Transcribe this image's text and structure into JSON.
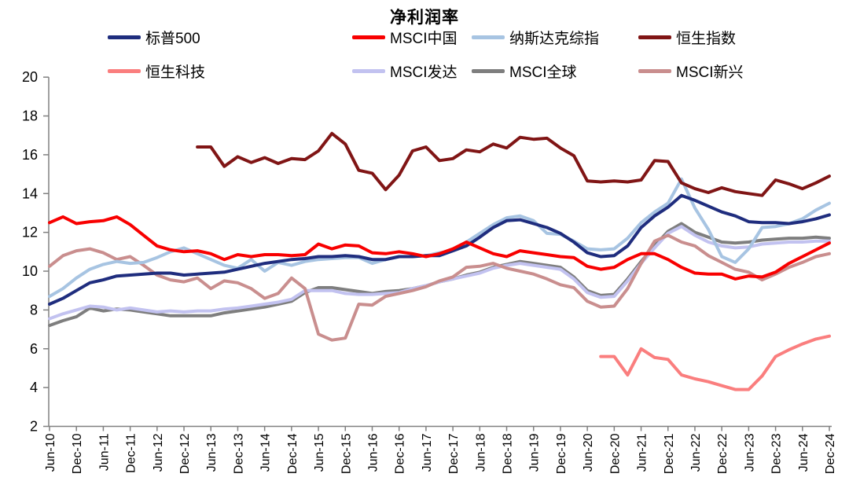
{
  "page_title": "净利润率",
  "chart_data": {
    "type": "line",
    "title": "净利润率",
    "grid": false,
    "legend_position": "top",
    "x_label_note": "semi-annual ticks shown, quarterly data",
    "x": [
      "Jun-10",
      "Sep-10",
      "Dec-10",
      "Mar-11",
      "Jun-11",
      "Sep-11",
      "Dec-11",
      "Mar-12",
      "Jun-12",
      "Sep-12",
      "Dec-12",
      "Mar-13",
      "Jun-13",
      "Sep-13",
      "Dec-13",
      "Mar-14",
      "Jun-14",
      "Sep-14",
      "Dec-14",
      "Mar-15",
      "Jun-15",
      "Sep-15",
      "Dec-15",
      "Mar-16",
      "Jun-16",
      "Sep-16",
      "Dec-16",
      "Mar-17",
      "Jun-17",
      "Sep-17",
      "Dec-17",
      "Mar-18",
      "Jun-18",
      "Sep-18",
      "Dec-18",
      "Mar-19",
      "Jun-19",
      "Sep-19",
      "Dec-19",
      "Mar-20",
      "Jun-20",
      "Sep-20",
      "Dec-20",
      "Mar-21",
      "Jun-21",
      "Sep-21",
      "Dec-21",
      "Mar-22",
      "Jun-22",
      "Sep-22",
      "Dec-22",
      "Mar-23",
      "Jun-23",
      "Sep-23",
      "Dec-23",
      "Mar-24",
      "Jun-24",
      "Sep-24",
      "Dec-24"
    ],
    "y_axis": {
      "min": 2,
      "max": 20,
      "step": 2,
      "ticks": [
        2,
        4,
        6,
        8,
        10,
        12,
        14,
        16,
        18,
        20
      ]
    },
    "series": [
      {
        "name": "标普500",
        "color": "#1F2D7E",
        "values": [
          8.3,
          8.6,
          9.0,
          9.4,
          9.55,
          9.75,
          9.8,
          9.85,
          9.9,
          9.9,
          9.8,
          9.85,
          9.9,
          9.95,
          10.1,
          10.25,
          10.4,
          10.5,
          10.6,
          10.65,
          10.75,
          10.75,
          10.8,
          10.75,
          10.6,
          10.6,
          10.75,
          10.75,
          10.8,
          10.8,
          11.05,
          11.3,
          11.75,
          12.25,
          12.6,
          12.65,
          12.45,
          12.25,
          11.95,
          11.5,
          10.95,
          10.75,
          10.8,
          11.3,
          12.25,
          12.85,
          13.3,
          13.9,
          13.65,
          13.35,
          13.05,
          12.85,
          12.55,
          12.5,
          12.5,
          12.45,
          12.55,
          12.7,
          12.9
        ]
      },
      {
        "name": "MSCI中国",
        "color": "#F80000",
        "values": [
          12.5,
          12.8,
          12.45,
          12.55,
          12.6,
          12.8,
          12.4,
          11.85,
          11.3,
          11.1,
          11.0,
          11.05,
          10.9,
          10.6,
          10.85,
          10.75,
          10.85,
          10.85,
          10.8,
          10.85,
          11.4,
          11.15,
          11.35,
          11.3,
          10.95,
          10.9,
          11.0,
          10.9,
          10.75,
          10.9,
          11.15,
          11.5,
          11.2,
          10.9,
          10.75,
          11.05,
          10.95,
          10.85,
          10.75,
          10.7,
          10.25,
          10.1,
          10.2,
          10.6,
          10.9,
          10.9,
          10.6,
          10.2,
          9.9,
          9.85,
          9.85,
          9.6,
          9.75,
          9.7,
          9.95,
          10.4,
          10.75,
          11.1,
          11.45
        ]
      },
      {
        "name": "纳斯达克综指",
        "color": "#A7C4E2",
        "values": [
          8.7,
          9.1,
          9.65,
          10.1,
          10.35,
          10.5,
          10.4,
          10.45,
          10.7,
          11.0,
          11.2,
          10.9,
          10.6,
          10.3,
          10.15,
          10.6,
          10.0,
          10.45,
          10.3,
          10.5,
          10.6,
          10.65,
          10.7,
          10.7,
          10.4,
          10.6,
          10.75,
          10.75,
          10.8,
          10.95,
          11.05,
          11.5,
          11.95,
          12.4,
          12.75,
          12.85,
          12.6,
          11.95,
          11.9,
          11.55,
          11.15,
          11.1,
          11.15,
          11.7,
          12.5,
          13.05,
          13.5,
          14.75,
          13.25,
          12.15,
          10.75,
          10.45,
          11.15,
          12.25,
          12.3,
          12.45,
          12.7,
          13.15,
          13.5
        ]
      },
      {
        "name": "恒生指数",
        "color": "#801515",
        "values": [
          null,
          null,
          null,
          null,
          null,
          null,
          null,
          null,
          null,
          null,
          null,
          16.4,
          16.4,
          15.4,
          15.9,
          15.6,
          15.85,
          15.55,
          15.8,
          15.75,
          16.2,
          17.1,
          16.55,
          15.2,
          15.05,
          14.2,
          14.95,
          16.2,
          16.4,
          15.7,
          15.8,
          16.25,
          16.15,
          16.55,
          16.35,
          16.9,
          16.8,
          16.85,
          16.35,
          15.95,
          14.65,
          14.6,
          14.65,
          14.6,
          14.7,
          15.7,
          15.65,
          14.55,
          14.25,
          14.05,
          14.3,
          14.1,
          14.0,
          13.9,
          14.7,
          14.5,
          14.25,
          14.55,
          14.9
        ]
      },
      {
        "name": "恒生科技",
        "color": "#FA7E7E",
        "values": [
          null,
          null,
          null,
          null,
          null,
          null,
          null,
          null,
          null,
          null,
          null,
          null,
          null,
          null,
          null,
          null,
          null,
          null,
          null,
          null,
          null,
          null,
          null,
          null,
          null,
          null,
          null,
          null,
          null,
          null,
          null,
          null,
          null,
          null,
          null,
          null,
          null,
          null,
          null,
          null,
          null,
          5.6,
          5.6,
          4.65,
          6.0,
          5.55,
          5.45,
          4.65,
          4.45,
          4.3,
          4.1,
          3.9,
          3.9,
          4.6,
          5.6,
          5.95,
          6.25,
          6.5,
          6.65
        ]
      },
      {
        "name": "MSCI发达",
        "color": "#C2C2F0",
        "values": [
          7.55,
          7.8,
          8.0,
          8.2,
          8.15,
          8.0,
          8.1,
          8.0,
          7.9,
          7.95,
          7.9,
          7.95,
          7.95,
          8.05,
          8.1,
          8.2,
          8.3,
          8.4,
          8.55,
          9.0,
          9.0,
          9.0,
          8.85,
          8.8,
          8.8,
          8.85,
          8.9,
          9.1,
          9.25,
          9.45,
          9.6,
          9.75,
          9.9,
          10.15,
          10.3,
          10.4,
          10.3,
          10.2,
          10.1,
          9.6,
          8.9,
          8.65,
          8.7,
          9.5,
          10.4,
          11.2,
          11.95,
          12.3,
          11.85,
          11.5,
          11.3,
          11.2,
          11.25,
          11.4,
          11.45,
          11.5,
          11.5,
          11.55,
          11.55
        ]
      },
      {
        "name": "MSCI全球",
        "color": "#7E7E7E",
        "values": [
          7.2,
          7.45,
          7.65,
          8.1,
          7.95,
          8.05,
          8.0,
          7.9,
          7.8,
          7.7,
          7.7,
          7.7,
          7.7,
          7.85,
          7.95,
          8.05,
          8.15,
          8.3,
          8.45,
          8.9,
          9.15,
          9.15,
          9.05,
          8.95,
          8.85,
          8.95,
          9.0,
          9.1,
          9.25,
          9.45,
          9.6,
          9.8,
          9.95,
          10.2,
          10.35,
          10.5,
          10.4,
          10.3,
          10.2,
          9.7,
          9.0,
          8.75,
          8.8,
          9.6,
          10.5,
          11.3,
          12.05,
          12.45,
          12.0,
          11.75,
          11.5,
          11.45,
          11.5,
          11.6,
          11.65,
          11.7,
          11.7,
          11.75,
          11.7
        ]
      },
      {
        "name": "MSCI新兴",
        "color": "#C98E8E",
        "values": [
          10.25,
          10.8,
          11.05,
          11.15,
          10.95,
          10.6,
          10.75,
          10.3,
          9.8,
          9.55,
          9.45,
          9.65,
          9.1,
          9.5,
          9.4,
          9.1,
          8.6,
          8.85,
          9.65,
          9.1,
          6.75,
          6.45,
          6.55,
          8.3,
          8.25,
          8.7,
          8.85,
          9.0,
          9.2,
          9.5,
          9.7,
          10.2,
          10.25,
          10.4,
          10.15,
          10.0,
          9.85,
          9.6,
          9.3,
          9.15,
          8.45,
          8.15,
          8.2,
          9.1,
          10.4,
          11.55,
          11.85,
          11.5,
          11.3,
          10.8,
          10.45,
          10.1,
          9.95,
          9.55,
          9.85,
          10.2,
          10.45,
          10.75,
          10.9
        ]
      }
    ]
  }
}
